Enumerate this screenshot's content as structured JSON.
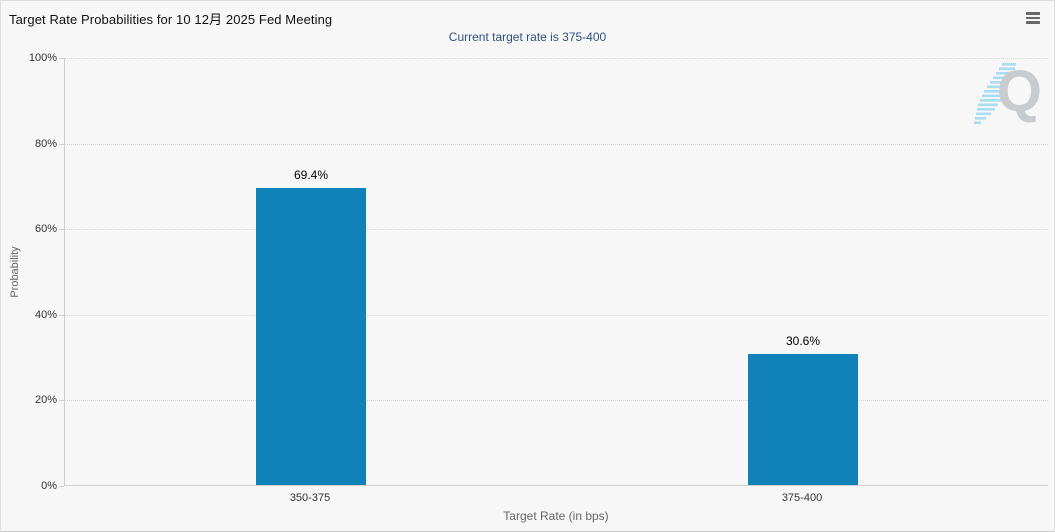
{
  "header": {
    "title": "Target Rate Probabilities for 10 12月 2025 Fed Meeting",
    "subtitle": "Current target rate is 375-400"
  },
  "menu": {
    "icon": "hamburger-icon"
  },
  "watermark": {
    "letter": "Q"
  },
  "colors": {
    "bar": "#1182b8",
    "subtitle_text": "#31507d",
    "axis_line": "#cfcfcf",
    "grid_line": "#d6d6d6",
    "tick_label": "#333333",
    "axis_title": "#666666",
    "background": "#f7f7f7",
    "watermark_gray": "#c9ccce",
    "watermark_blue": "#a8ddf2"
  },
  "chart_data": {
    "type": "bar",
    "title": "Target Rate Probabilities for 10 12月 2025 Fed Meeting",
    "subtitle": "Current target rate is 375-400",
    "categories": [
      "350-375",
      "375-400"
    ],
    "values": [
      69.4,
      30.6
    ],
    "value_labels": [
      "69.4%",
      "30.6%"
    ],
    "xlabel": "Target Rate (in bps)",
    "ylabel": "Probability",
    "ylim": [
      0,
      100
    ],
    "yticks": [
      0,
      20,
      40,
      60,
      80,
      100
    ],
    "ytick_labels": [
      "0%",
      "20%",
      "40%",
      "60%",
      "80%",
      "100%"
    ],
    "grid": "horizontal-dotted",
    "legend": "none"
  }
}
